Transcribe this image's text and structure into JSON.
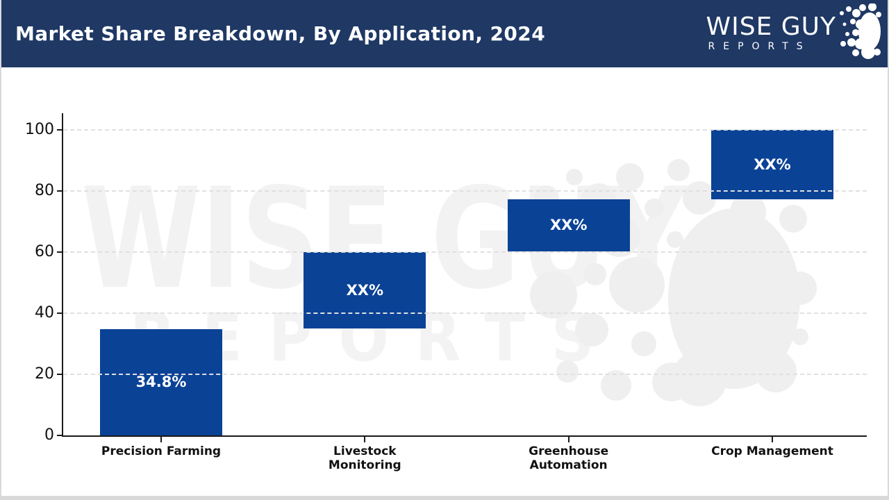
{
  "header": {
    "title": "Market Share Breakdown, By Application, 2024",
    "logo": {
      "line1": "WISE GUY",
      "line2": "REPORTS"
    }
  },
  "watermark": {
    "line1": "WISE GUY",
    "line2": "REPORTS"
  },
  "chart_data": {
    "type": "bar",
    "subtype": "waterfall",
    "title": "Market Share Breakdown, By Application, 2024",
    "categories": [
      "Precision Farming",
      "Livestock Monitoring",
      "Greenhouse Automation",
      "Crop Management"
    ],
    "category_lines": [
      [
        "Precision Farming"
      ],
      [
        "Livestock",
        "Monitoring"
      ],
      [
        "Greenhouse",
        "Automation"
      ],
      [
        "Crop Management"
      ]
    ],
    "segments": [
      {
        "category": "Precision Farming",
        "start": 0,
        "end": 34.8,
        "label": "34.8%"
      },
      {
        "category": "Livestock Monitoring",
        "start": 35,
        "end": 60,
        "label": "XX%"
      },
      {
        "category": "Greenhouse Automation",
        "start": 60.2,
        "end": 77.3,
        "label": "XX%"
      },
      {
        "category": "Crop Management",
        "start": 77.3,
        "end": 100,
        "label": "XX%"
      }
    ],
    "yticks": [
      0,
      20,
      40,
      60,
      80,
      100
    ],
    "ylim": [
      0,
      105
    ],
    "xlabel": "",
    "ylabel": "",
    "grid": "horizontal-dashed",
    "legend": "none",
    "bar_color": "#0a4296",
    "value_label_color": "#ffffff"
  },
  "colors": {
    "header_bg": "#1f3864",
    "bar": "#0a4296",
    "grid": "#e0e0e0",
    "footer_strip": "#d9d9d9",
    "watermark": "#f2f2f2"
  }
}
